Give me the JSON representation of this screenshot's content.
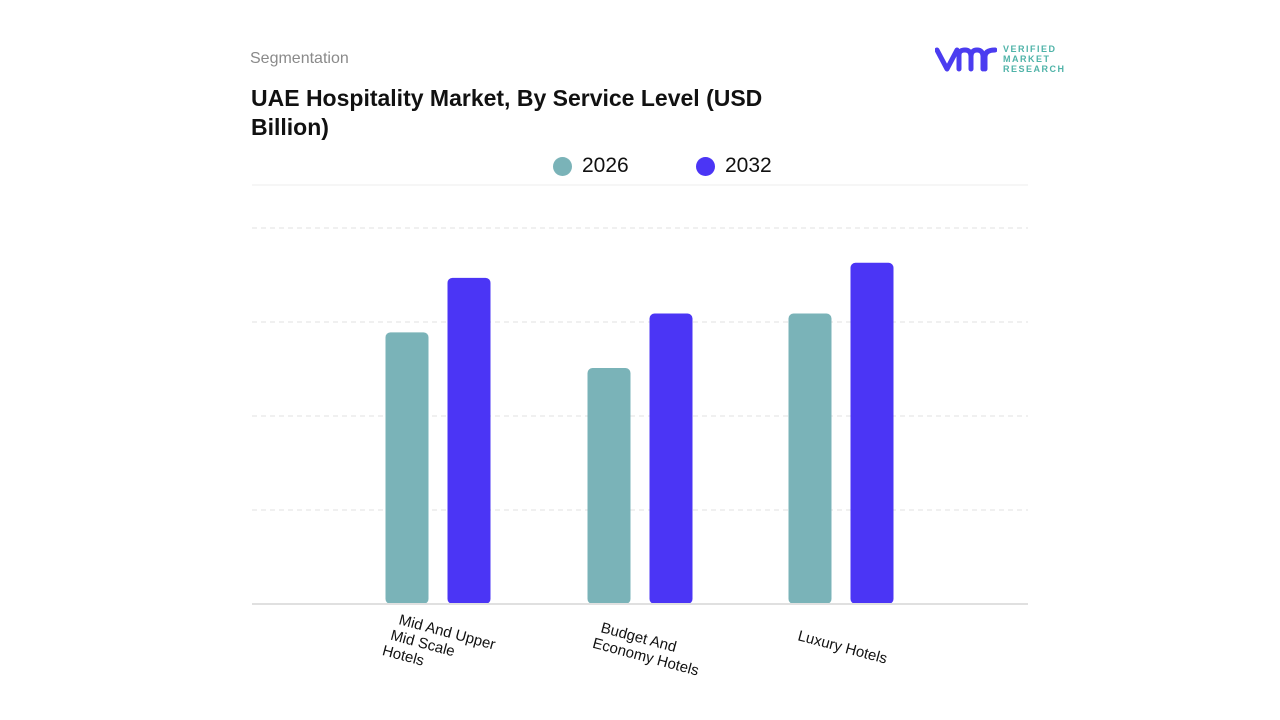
{
  "header": {
    "segment_label": "Segmentation",
    "title": "UAE Hospitality Market, By Service Level (USD Billion)"
  },
  "logo": {
    "text_lines": [
      "VERIFIED",
      "MARKET",
      "RESEARCH"
    ],
    "mark": "vmr",
    "color": "#4b3cf0"
  },
  "chart_data": {
    "type": "bar",
    "title": "UAE Hospitality Market, By Service Level (USD Billion)",
    "xlabel": "",
    "ylabel": "",
    "categories": [
      "Mid And Upper Mid Scale Hotels",
      "Budget And Economy Hotels",
      "Luxury  Hotels"
    ],
    "category_lines": [
      [
        "Mid And Upper",
        "Mid Scale",
        "Hotels"
      ],
      [
        "Budget And",
        "Economy Hotels"
      ],
      [
        "Luxury  Hotels"
      ]
    ],
    "series": [
      {
        "name": "2026",
        "color": "#7ab3b8",
        "values": [
          2.89,
          2.51,
          3.09
        ]
      },
      {
        "name": "2032",
        "color": "#4b35f5",
        "values": [
          3.47,
          3.09,
          3.63
        ]
      }
    ],
    "ylim": [
      0,
      4
    ],
    "grid": true,
    "legend_position": "top-center"
  }
}
